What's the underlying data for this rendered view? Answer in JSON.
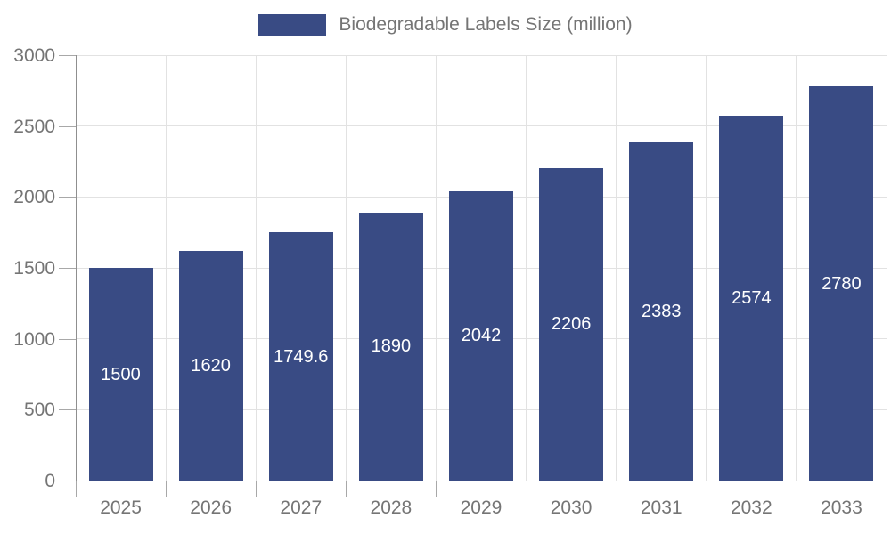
{
  "chart_data": {
    "type": "bar",
    "title": "Biodegradable Labels Size (million)",
    "categories": [
      "2025",
      "2026",
      "2027",
      "2028",
      "2029",
      "2030",
      "2031",
      "2032",
      "2033"
    ],
    "values": [
      1500,
      1620,
      1749.6,
      1890,
      2042,
      2206,
      2383,
      2574,
      2780
    ],
    "value_labels": [
      "1500",
      "1620",
      "1749.6",
      "1890",
      "2042",
      "2206",
      "2383",
      "2574",
      "2780"
    ],
    "xlabel": "",
    "ylabel": "",
    "ylim": [
      0,
      3000
    ],
    "yticks": [
      0,
      500,
      1000,
      1500,
      2000,
      2500,
      3000
    ],
    "grid": true,
    "legend_position": "top-center",
    "colors": {
      "bar": "#394B84",
      "bar_label": "#ffffff",
      "tick_text": "#757575",
      "grid": "#e2e2e2",
      "axis": "#9a9a9a",
      "background": "#ffffff"
    }
  }
}
